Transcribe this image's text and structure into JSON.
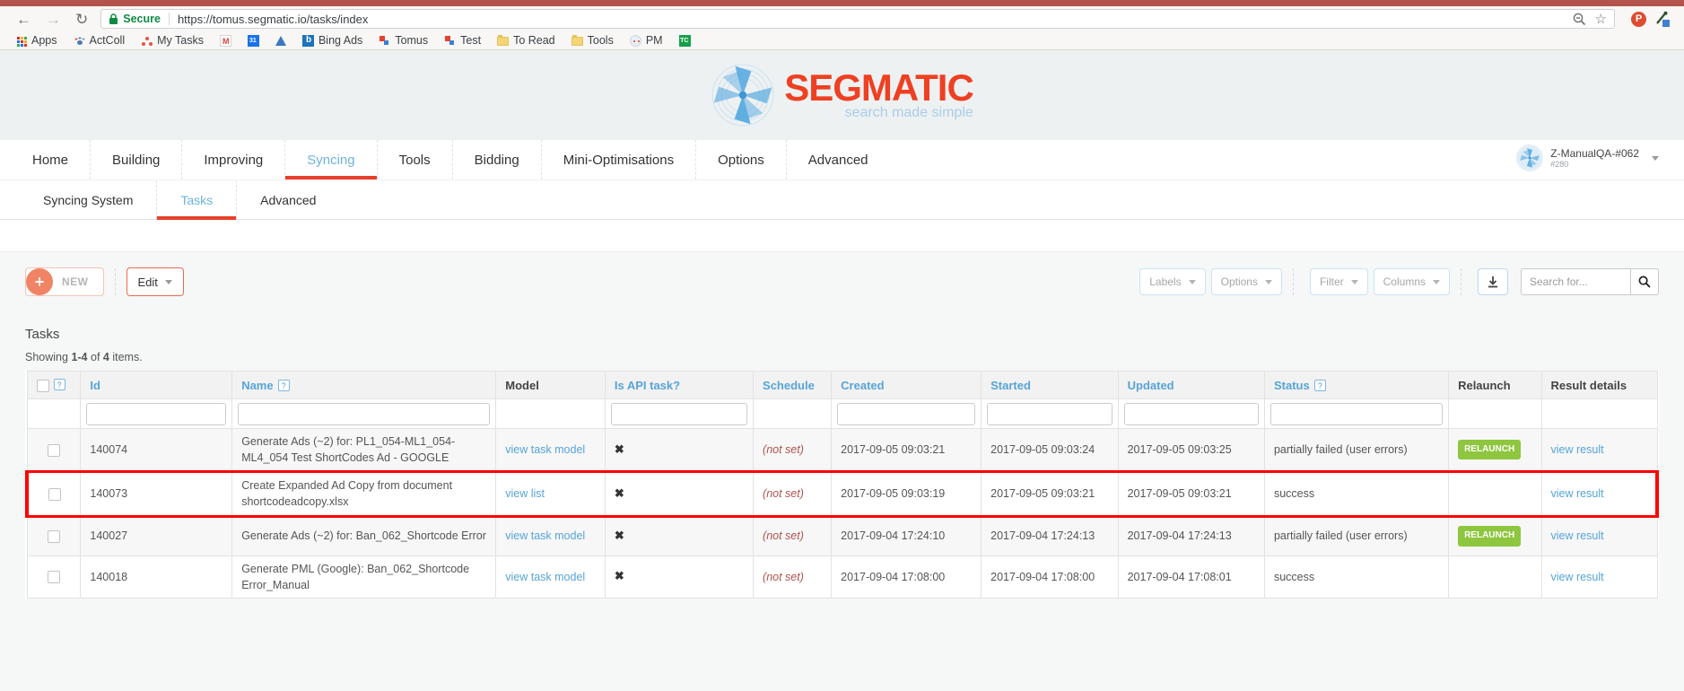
{
  "colors": {
    "brand_red": "#ee4023",
    "link_blue": "#56a4d8",
    "tagline_blue": "#a9cde9",
    "badge_green": "#8ec63f",
    "highlight_red": "#ff0000",
    "not_set_red": "#b0524e",
    "secure_green": "#0f8a43",
    "chrome_strip": "#b3544c",
    "active_tab_blue": "#6db3e1"
  },
  "browser": {
    "secure_label": "Secure",
    "url": "https://tomus.segmatic.io/tasks/index",
    "bookmarks": [
      {
        "icon": "apps-grid-icon",
        "label": "Apps"
      },
      {
        "icon": "paw-icon",
        "label": "ActColl"
      },
      {
        "icon": "dots-icon",
        "label": "My Tasks"
      },
      {
        "icon": "gmail-icon",
        "label": ""
      },
      {
        "icon": "calendar-icon",
        "label": ""
      },
      {
        "icon": "analytics-icon",
        "label": ""
      },
      {
        "icon": "bing-icon",
        "label": "Bing Ads"
      },
      {
        "icon": "tiles-icon",
        "label": "Tomus"
      },
      {
        "icon": "tiles-icon",
        "label": "Test"
      },
      {
        "icon": "folder-icon",
        "label": "To Read"
      },
      {
        "icon": "folder-icon",
        "label": "Tools"
      },
      {
        "icon": "reddit-icon",
        "label": "PM"
      },
      {
        "icon": "tc-icon",
        "label": ""
      }
    ]
  },
  "masthead": {
    "brand": "SEGMATIC",
    "tagline": "search made simple"
  },
  "mainnav": {
    "items": [
      "Home",
      "Building",
      "Improving",
      "Syncing",
      "Tools",
      "Bidding",
      "Mini-Optimisations",
      "Options",
      "Advanced"
    ],
    "active": "Syncing"
  },
  "subnav": {
    "items": [
      "Syncing System",
      "Tasks",
      "Advanced"
    ],
    "active": "Tasks"
  },
  "user": {
    "name": "Z-ManualQA-#062",
    "id": "#280"
  },
  "toolbar": {
    "new_label": "NEW",
    "edit_label": "Edit",
    "dropdowns": [
      "Labels",
      "Options",
      "Filter",
      "Columns"
    ],
    "search_placeholder": "Search for..."
  },
  "table": {
    "title": "Tasks",
    "summary": {
      "prefix": "Showing",
      "range": "1-4",
      "of": "of",
      "total": "4",
      "suffix": "items."
    },
    "checkbox_col_width": "3.3%",
    "columns": [
      {
        "key": "id",
        "label": "Id",
        "link": true,
        "help": false,
        "filter": true,
        "width": "9.3%"
      },
      {
        "key": "name",
        "label": "Name",
        "link": true,
        "help": true,
        "filter": true,
        "width": "16.2%"
      },
      {
        "key": "model",
        "label": "Model",
        "link": false,
        "help": false,
        "filter": false,
        "width": "6.7%"
      },
      {
        "key": "api",
        "label": "Is API task?",
        "link": true,
        "help": false,
        "filter": true,
        "width": "9.1%"
      },
      {
        "key": "schedule",
        "label": "Schedule",
        "link": true,
        "help": false,
        "filter": false,
        "width": "4.8%"
      },
      {
        "key": "created",
        "label": "Created",
        "link": true,
        "help": false,
        "filter": true,
        "width": "9.2%"
      },
      {
        "key": "started",
        "label": "Started",
        "link": true,
        "help": false,
        "filter": true,
        "width": "8.4%"
      },
      {
        "key": "updated",
        "label": "Updated",
        "link": true,
        "help": false,
        "filter": true,
        "width": "9.0%"
      },
      {
        "key": "status",
        "label": "Status",
        "link": true,
        "help": true,
        "filter": true,
        "width": "11.3%"
      },
      {
        "key": "relaunch",
        "label": "Relaunch",
        "link": false,
        "help": false,
        "filter": false,
        "width": "5.7%"
      },
      {
        "key": "result",
        "label": "Result details",
        "link": false,
        "help": false,
        "filter": false,
        "width": "7.1%"
      }
    ],
    "rows": [
      {
        "id": "140074",
        "name": "Generate Ads (~2) for: PL1_054-ML1_054-ML4_054 Test ShortCodes Ad - GOOGLE",
        "model": "view task model",
        "api": "✖",
        "schedule": "(not set)",
        "created": "2017-09-05 09:03:21",
        "started": "2017-09-05 09:03:24",
        "updated": "2017-09-05 09:03:25",
        "status": "partially failed (user errors)",
        "relaunch": "RELAUNCH",
        "result": "view result",
        "highlighted": false
      },
      {
        "id": "140073",
        "name": "Create Expanded Ad Copy from document shortcodeadcopy.xlsx",
        "model": "view list",
        "api": "✖",
        "schedule": "(not set)",
        "created": "2017-09-05 09:03:19",
        "started": "2017-09-05 09:03:21",
        "updated": "2017-09-05 09:03:21",
        "status": "success",
        "relaunch": "",
        "result": "view result",
        "highlighted": true
      },
      {
        "id": "140027",
        "name": "Generate Ads (~2) for: Ban_062_Shortcode Error",
        "model": "view task model",
        "api": "✖",
        "schedule": "(not set)",
        "created": "2017-09-04 17:24:10",
        "started": "2017-09-04 17:24:13",
        "updated": "2017-09-04 17:24:13",
        "status": "partially failed (user errors)",
        "relaunch": "RELAUNCH",
        "result": "view result",
        "highlighted": false
      },
      {
        "id": "140018",
        "name": "Generate PML (Google): Ban_062_Shortcode Error_Manual",
        "model": "view task model",
        "api": "✖",
        "schedule": "(not set)",
        "created": "2017-09-04 17:08:00",
        "started": "2017-09-04 17:08:00",
        "updated": "2017-09-04 17:08:01",
        "status": "success",
        "relaunch": "",
        "result": "view result",
        "highlighted": false
      }
    ]
  }
}
